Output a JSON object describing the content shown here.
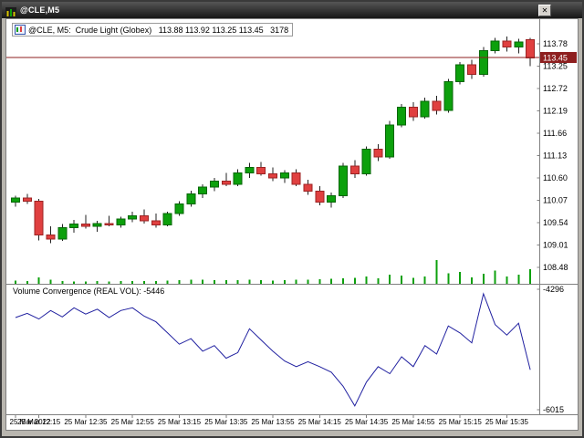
{
  "window": {
    "title": "@CLE,M5",
    "close_glyph": "✕"
  },
  "legend": {
    "text": "@CLE, M5:  Crude Light (Globex)   113.88 113.92 113.25 113.45   3178"
  },
  "chart_data": [
    {
      "type": "candlestick",
      "symbol": "@CLE",
      "timeframe": "M5",
      "description": "Crude Light (Globex)",
      "ohlc_header": {
        "open": 113.88,
        "high": 113.92,
        "low": 113.25,
        "close": 113.45,
        "volume": 3178
      },
      "current_price": 113.45,
      "current_price_label": "113.45",
      "price_axis_labels": [
        "113.78",
        "113.25",
        "112.72",
        "112.19",
        "111.66",
        "111.13",
        "110.60",
        "110.07",
        "109.54",
        "109.01",
        "108.48"
      ],
      "candles": [
        [
          110.02,
          110.18,
          109.92,
          110.12
        ],
        [
          110.12,
          110.22,
          109.98,
          110.05
        ],
        [
          110.05,
          110.1,
          109.12,
          109.25
        ],
        [
          109.25,
          109.45,
          109.05,
          109.15
        ],
        [
          109.15,
          109.5,
          109.1,
          109.42
        ],
        [
          109.42,
          109.6,
          109.3,
          109.5
        ],
        [
          109.5,
          109.72,
          109.4,
          109.45
        ],
        [
          109.45,
          109.58,
          109.32,
          109.52
        ],
        [
          109.52,
          109.7,
          109.45,
          109.48
        ],
        [
          109.48,
          109.68,
          109.42,
          109.62
        ],
        [
          109.62,
          109.8,
          109.55,
          109.7
        ],
        [
          109.7,
          109.85,
          109.52,
          109.58
        ],
        [
          109.58,
          109.75,
          109.42,
          109.48
        ],
        [
          109.48,
          109.8,
          109.45,
          109.75
        ],
        [
          109.75,
          110.05,
          109.7,
          109.98
        ],
        [
          109.98,
          110.3,
          109.92,
          110.22
        ],
        [
          110.22,
          110.45,
          110.12,
          110.38
        ],
        [
          110.38,
          110.6,
          110.28,
          110.52
        ],
        [
          110.52,
          110.72,
          110.4,
          110.45
        ],
        [
          110.45,
          110.8,
          110.4,
          110.72
        ],
        [
          110.72,
          110.95,
          110.6,
          110.85
        ],
        [
          110.85,
          110.98,
          110.65,
          110.7
        ],
        [
          110.7,
          110.85,
          110.52,
          110.6
        ],
        [
          110.6,
          110.78,
          110.48,
          110.72
        ],
        [
          110.72,
          110.8,
          110.4,
          110.45
        ],
        [
          110.45,
          110.55,
          110.2,
          110.28
        ],
        [
          110.28,
          110.4,
          109.95,
          110.02
        ],
        [
          110.02,
          110.25,
          109.9,
          110.18
        ],
        [
          110.18,
          110.95,
          110.12,
          110.88
        ],
        [
          110.88,
          111.02,
          110.6,
          110.7
        ],
        [
          110.7,
          111.35,
          110.65,
          111.28
        ],
        [
          111.28,
          111.4,
          111.0,
          111.1
        ],
        [
          111.1,
          111.95,
          111.05,
          111.85
        ],
        [
          111.85,
          112.35,
          111.8,
          112.28
        ],
        [
          112.28,
          112.4,
          111.95,
          112.05
        ],
        [
          112.05,
          112.5,
          112.0,
          112.42
        ],
        [
          112.42,
          112.55,
          112.1,
          112.2
        ],
        [
          112.2,
          112.95,
          112.15,
          112.88
        ],
        [
          112.88,
          113.35,
          112.82,
          113.28
        ],
        [
          113.28,
          113.4,
          112.95,
          113.05
        ],
        [
          113.05,
          113.7,
          113.0,
          113.62
        ],
        [
          113.62,
          113.92,
          113.55,
          113.85
        ],
        [
          113.85,
          113.95,
          113.6,
          113.7
        ],
        [
          113.7,
          113.9,
          113.55,
          113.82
        ],
        [
          113.88,
          113.92,
          113.25,
          113.45
        ]
      ],
      "volumes": [
        700,
        650,
        1400,
        900,
        600,
        550,
        500,
        560,
        520,
        600,
        640,
        610,
        580,
        680,
        800,
        950,
        880,
        820,
        760,
        840,
        950,
        800,
        720,
        780,
        880,
        940,
        1020,
        1150,
        1250,
        1350,
        1650,
        1180,
        2000,
        1800,
        1350,
        1600,
        5200,
        2300,
        2600,
        1400,
        2200,
        2900,
        1650,
        2000,
        3178
      ],
      "time_axis_labels": [
        {
          "text": "25 Mar 2022",
          "bar": 0
        },
        {
          "text": "25 Mar 12:15",
          "bar": 2
        },
        {
          "text": "25 Mar 12:35",
          "bar": 6
        },
        {
          "text": "25 Mar 12:55",
          "bar": 10
        },
        {
          "text": "25 Mar 13:15",
          "bar": 14
        },
        {
          "text": "25 Mar 13:35",
          "bar": 18
        },
        {
          "text": "25 Mar 13:55",
          "bar": 22
        },
        {
          "text": "25 Mar 14:15",
          "bar": 26
        },
        {
          "text": "25 Mar 14:35",
          "bar": 30
        },
        {
          "text": "25 Mar 14:55",
          "bar": 34
        },
        {
          "text": "25 Mar 15:15",
          "bar": 38
        },
        {
          "text": "25 Mar 15:35",
          "bar": 42
        }
      ],
      "colors": {
        "up": "#0ca00c",
        "up_border": "#066606",
        "down": "#e04040",
        "down_border": "#9c2323",
        "wick": "#222222",
        "volume": "#0ca00c",
        "price_line": "#8e1f1f",
        "price_label_bg": "#8e1f1f",
        "axis": "#808080"
      }
    },
    {
      "type": "line",
      "title": "Volume Convergence (REAL VOL): -5446",
      "last_value": -5446,
      "axis_max": -4296,
      "axis_min": -6015,
      "axis_max_label": "-4296",
      "axis_min_label": "-6015",
      "color": "#2020a0",
      "values": [
        -4700,
        -4640,
        -4720,
        -4600,
        -4690,
        -4560,
        -4650,
        -4580,
        -4700,
        -4600,
        -4560,
        -4680,
        -4760,
        -4920,
        -5080,
        -5000,
        -5180,
        -5100,
        -5280,
        -5200,
        -4860,
        -5020,
        -5180,
        -5320,
        -5400,
        -5330,
        -5400,
        -5480,
        -5680,
        -5960,
        -5620,
        -5400,
        -5500,
        -5260,
        -5400,
        -5100,
        -5220,
        -4820,
        -4920,
        -5060,
        -4360,
        -4800,
        -4950,
        -4780,
        -5446
      ]
    }
  ]
}
